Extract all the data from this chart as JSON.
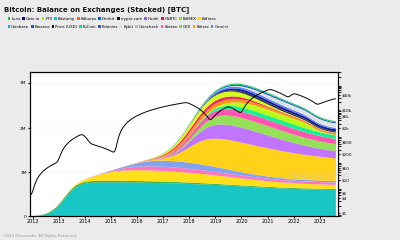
{
  "title": "Bitcoin: Balance on Exchanges (Stacked) [BTC]",
  "x_ticks": [
    "2012",
    "2013",
    "2014",
    "2015",
    "2016",
    "2017",
    "2018",
    "2019",
    "2020",
    "2021",
    "2022",
    "2023"
  ],
  "legend_row1": [
    {
      "label": "Luno",
      "color": "#00cc66"
    },
    {
      "label": "Gate.io",
      "color": "#000099"
    },
    {
      "label": "FTX",
      "color": "#99ff00"
    },
    {
      "label": "Bitstamp",
      "color": "#00cccc"
    },
    {
      "label": "Bitburex",
      "color": "#ff6600"
    },
    {
      "label": "Deribit",
      "color": "#0055ff"
    },
    {
      "label": "crypto.com",
      "color": "#111111"
    },
    {
      "label": "Huobi",
      "color": "#aa55ee"
    },
    {
      "label": "HitBTC",
      "color": "#ff0066"
    },
    {
      "label": "BitMEX",
      "color": "#88ee00"
    },
    {
      "label": "Bitfinex",
      "color": "#ffdd00"
    }
  ],
  "legend_row2": [
    {
      "label": "Coinbase",
      "color": "#00aaff"
    },
    {
      "label": "Binance",
      "color": "#1155cc"
    },
    {
      "label": "Price (USD)",
      "color": "#000000"
    },
    {
      "label": "KuCoin",
      "color": "#00ee88"
    },
    {
      "label": "Poloniex",
      "color": "#3355cc"
    },
    {
      "label": "Bybit",
      "color": "#dddddd"
    },
    {
      "label": "Coincheck",
      "color": "#bbbbbb"
    },
    {
      "label": "Kraken",
      "color": "#ff55aa"
    },
    {
      "label": "OKX",
      "color": "#77dd44"
    },
    {
      "label": "Bittrex",
      "color": "#ff9900"
    },
    {
      "label": "Gemini",
      "color": "#5588ee"
    }
  ],
  "background_color": "#f2f2f2",
  "plot_bg": "#ffffff",
  "watermark": "glassnode",
  "footer": "2023 Glassnode. All Rights Reserved."
}
